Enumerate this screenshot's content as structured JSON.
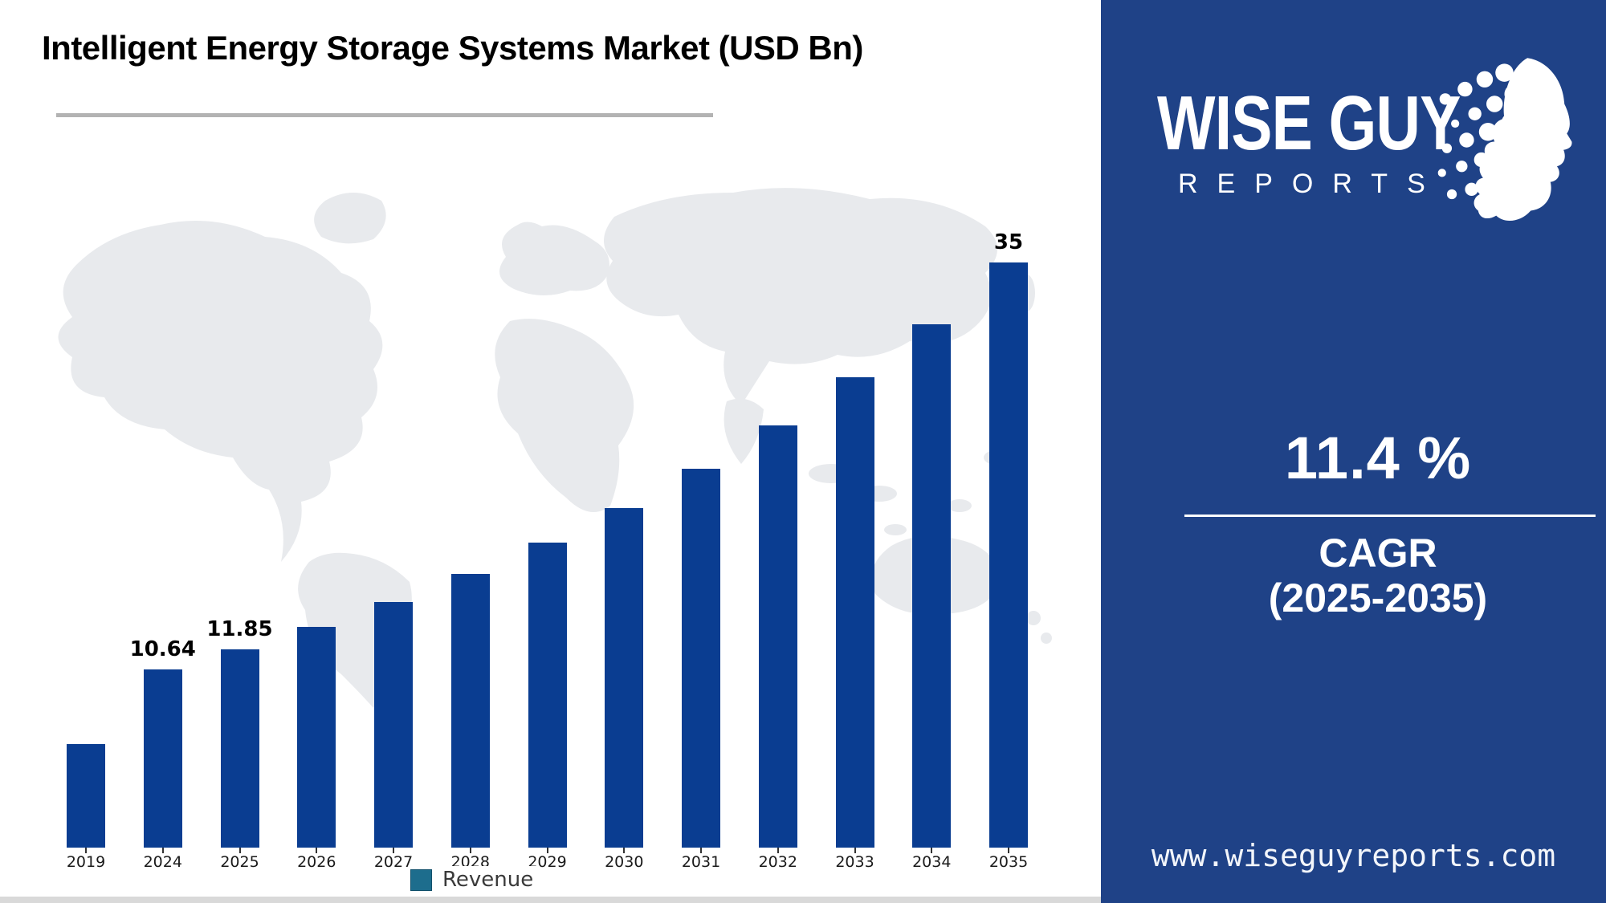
{
  "title": "Intelligent Energy Storage Systems Market (USD Bn)",
  "chart_data": {
    "type": "bar",
    "title": "Intelligent Energy Storage Systems Market (USD Bn)",
    "unit": "USD Bn",
    "categories": [
      "2019",
      "2024",
      "2025",
      "2026",
      "2027",
      "2028",
      "2029",
      "2030",
      "2031",
      "2032",
      "2033",
      "2034",
      "2035"
    ],
    "values": [
      6.2,
      10.64,
      11.85,
      13.2,
      14.71,
      16.38,
      18.25,
      20.33,
      22.65,
      25.23,
      28.11,
      31.31,
      35
    ],
    "bar_value_labels": [
      "",
      "10.64",
      "11.85",
      "",
      "",
      "",
      "",
      "",
      "",
      "",
      "",
      "",
      "35"
    ],
    "series_name": "Revenue",
    "ylim": [
      0,
      37
    ],
    "grid": false,
    "legend_position": "bottom",
    "bar_color": "#0a3d91",
    "legend_swatch_color": "#1d6d8d"
  },
  "legend": {
    "label": "Revenue"
  },
  "panel": {
    "background_color": "#1f4287",
    "logo_line1": "WISE GUY",
    "logo_line2": "REPORTS",
    "cagr_value": "11.4 %",
    "cagr_label": "CAGR",
    "cagr_period": "(2025-2035)",
    "website": "www.wiseguyreports.com"
  }
}
